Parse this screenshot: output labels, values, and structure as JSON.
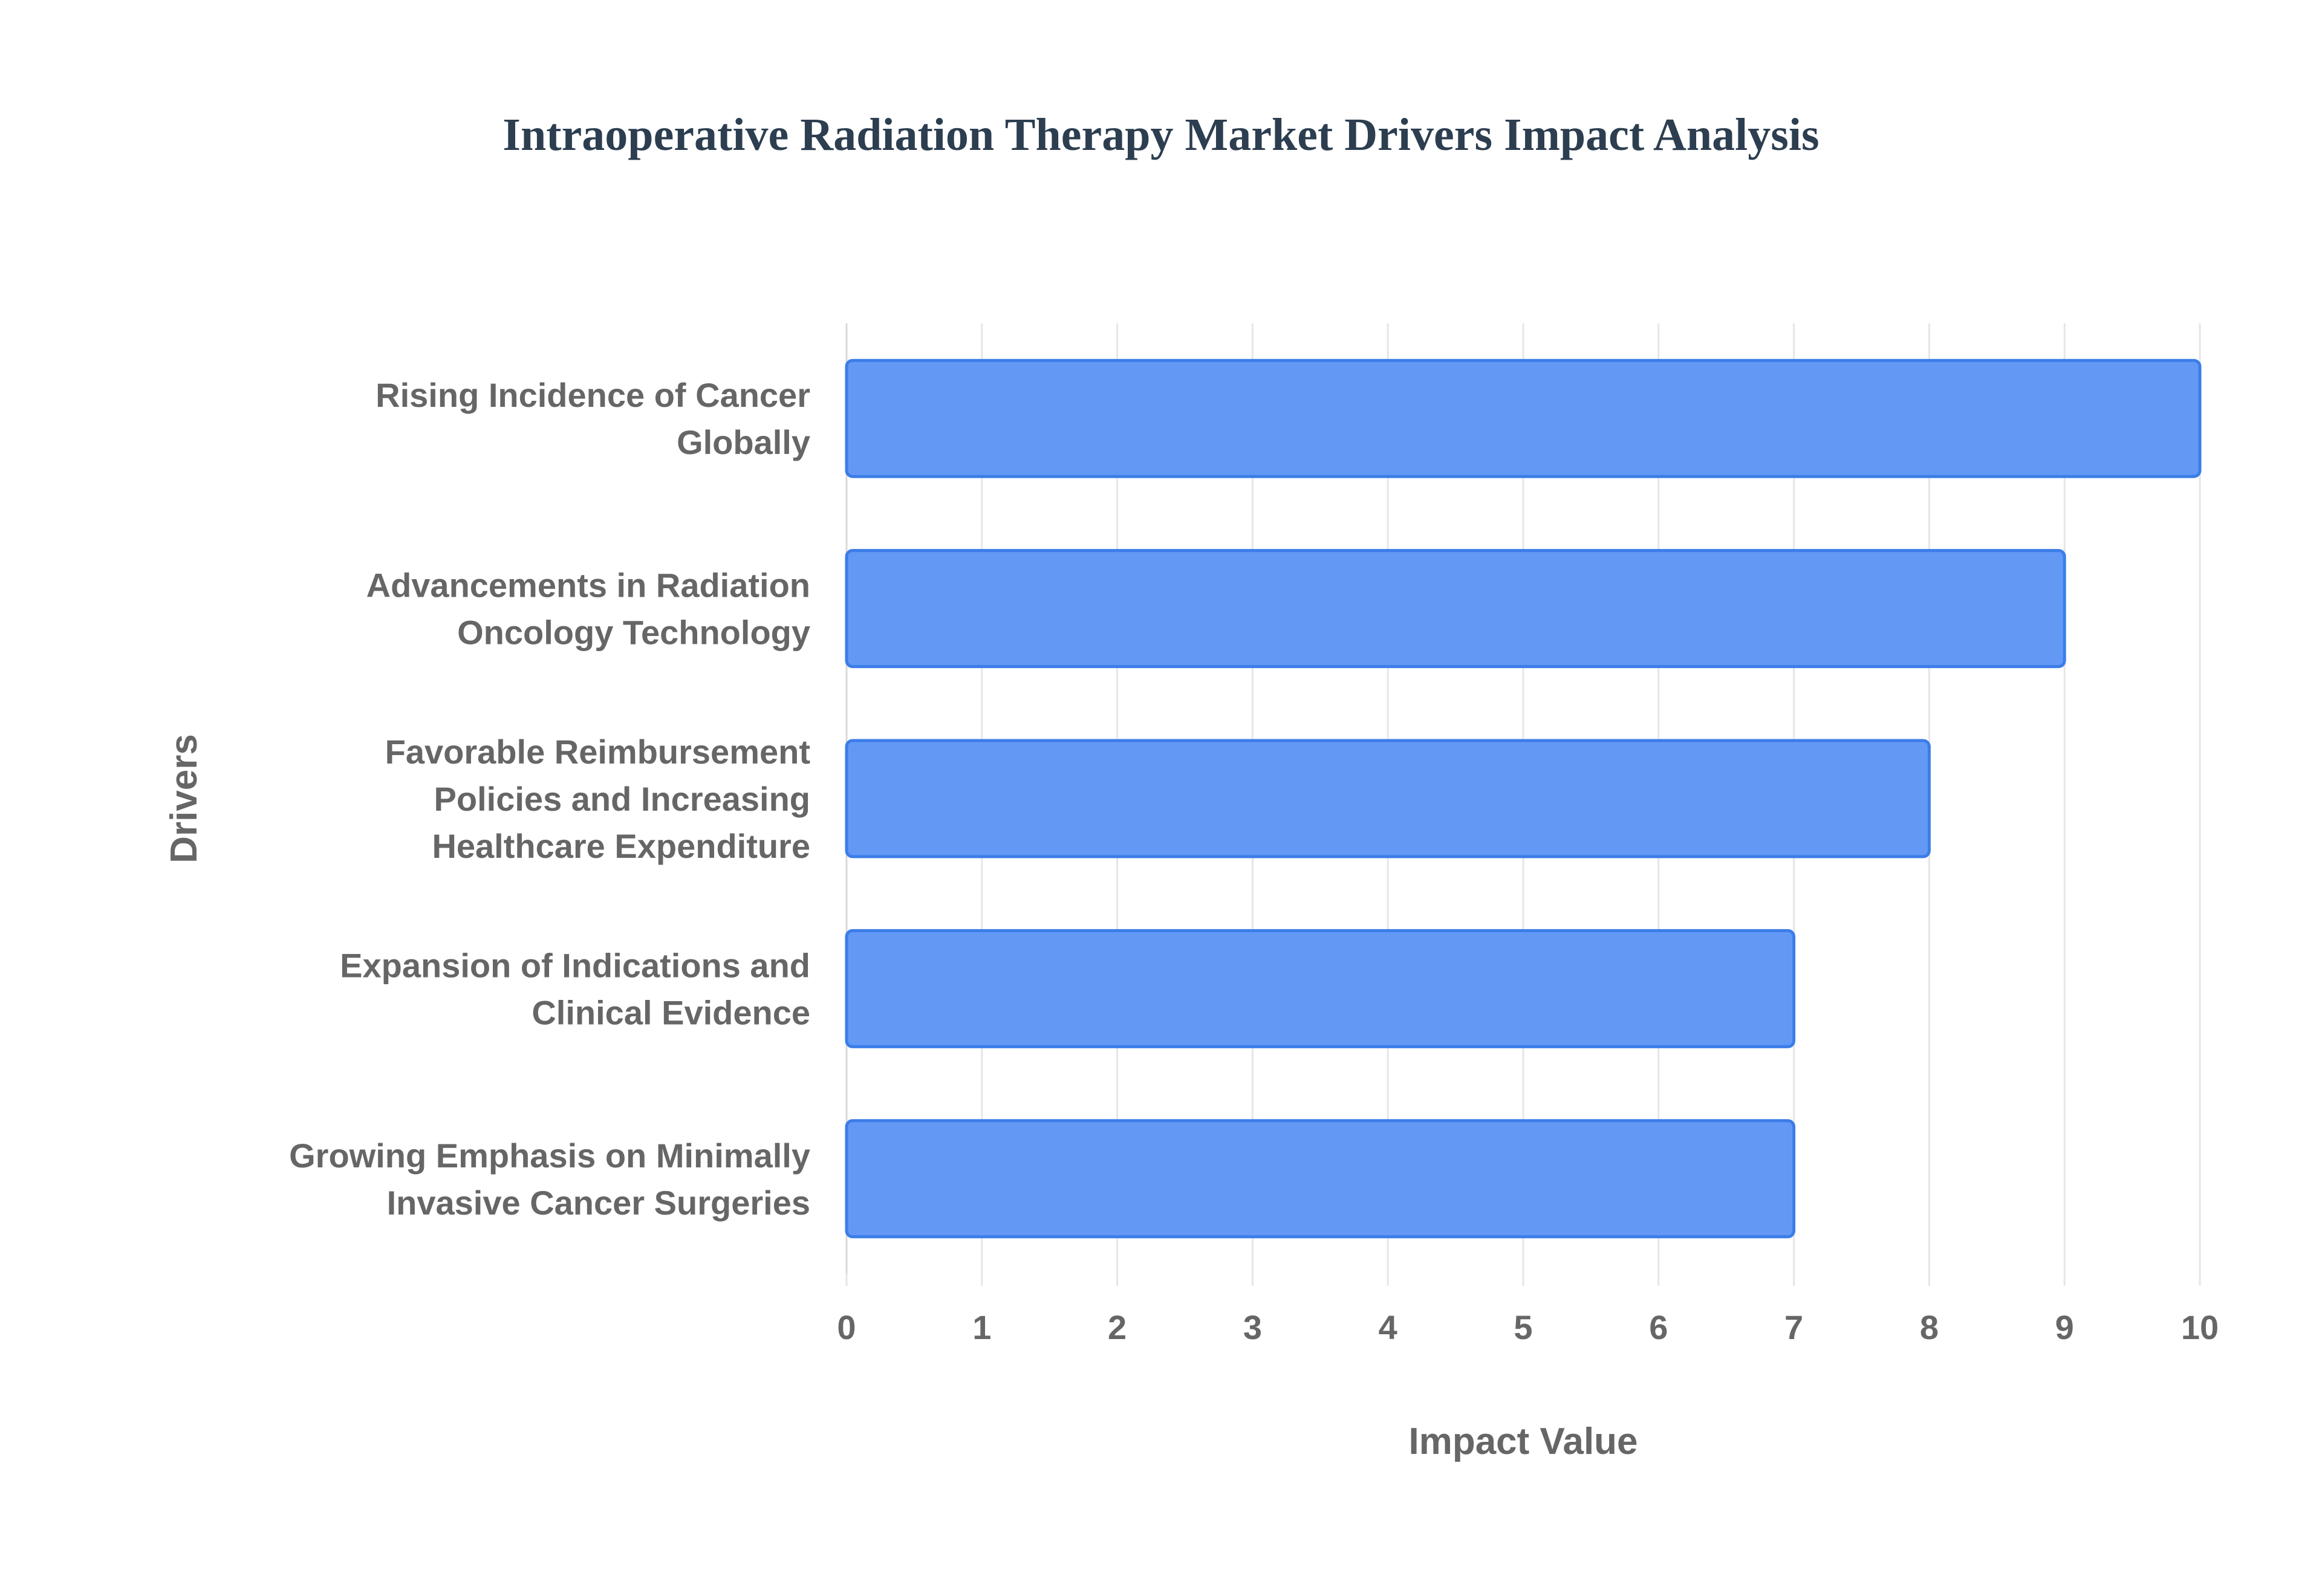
{
  "chart_data": {
    "type": "bar",
    "orientation": "horizontal",
    "title": "Intraoperative Radiation Therapy Market Drivers Impact Analysis",
    "xlabel": "Impact Value",
    "ylabel": "Drivers",
    "categories": [
      [
        "Rising Incidence of Cancer",
        "Globally"
      ],
      [
        "Advancements in Radiation",
        "Oncology Technology"
      ],
      [
        "Favorable Reimbursement",
        "Policies and Increasing",
        "Healthcare Expenditure"
      ],
      [
        "Expansion of Indications and",
        "Clinical Evidence"
      ],
      [
        "Growing Emphasis on Minimally",
        "Invasive Cancer Surgeries"
      ]
    ],
    "values": [
      10,
      9,
      8,
      7,
      7
    ],
    "xlim": [
      0,
      10
    ],
    "xticks": [
      "0",
      "1",
      "2",
      "3",
      "4",
      "5",
      "6",
      "7",
      "8",
      "9",
      "10"
    ],
    "grid": true,
    "bar_color": "#6399f5",
    "bar_border_color": "#3b7de8"
  }
}
